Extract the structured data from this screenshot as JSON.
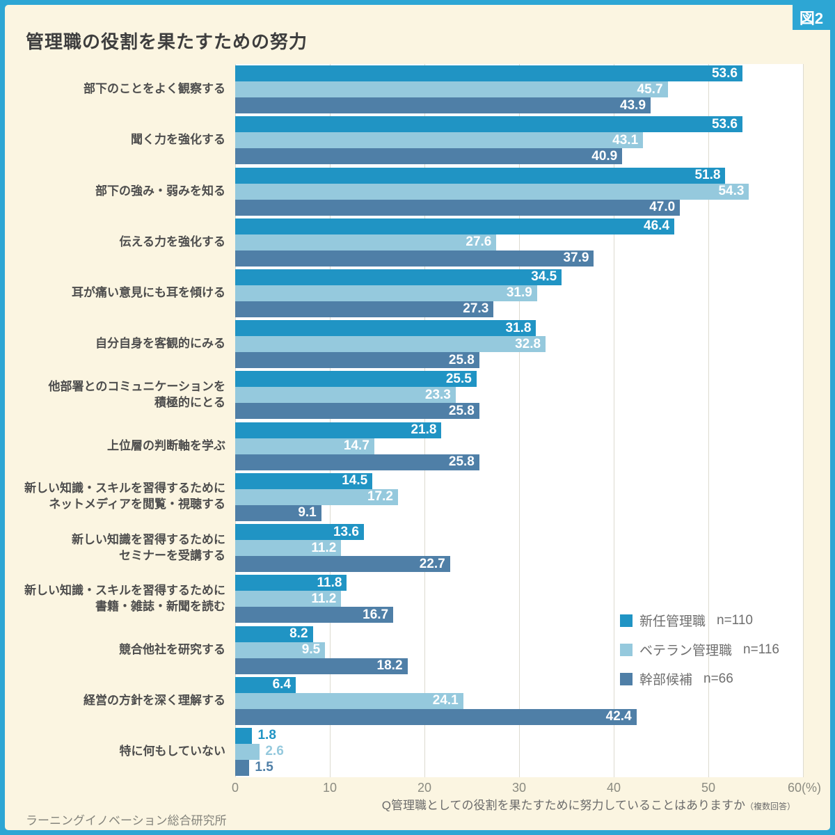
{
  "figure_tag": "図2",
  "title": "管理職の役割を果たすための努力",
  "colors": {
    "frame": "#2da6d4",
    "background": "#fbf5e1",
    "plot_background": "#ffffff",
    "gridline": "#dcdad0",
    "series": [
      "#2094c4",
      "#95c9dd",
      "#4f7fa7"
    ]
  },
  "chart_data": {
    "type": "bar",
    "orientation": "horizontal",
    "title": "管理職の役割を果たすための努力",
    "categories": [
      "部下のことをよく観察する",
      "聞く力を強化する",
      "部下の強み・弱みを知る",
      "伝える力を強化する",
      "耳が痛い意見にも耳を傾ける",
      "自分自身を客観的にみる",
      "他部署とのコミュニケーションを\n積極的にとる",
      "上位層の判断軸を学ぶ",
      "新しい知識・スキルを習得するために\nネットメディアを閲覧・視聴する",
      "新しい知識を習得するために\nセミナーを受講する",
      "新しい知識・スキルを習得するために\n書籍・雑誌・新聞を読む",
      "競合他社を研究する",
      "経営の方針を深く理解する",
      "特に何もしていない"
    ],
    "series": [
      {
        "name": "新任管理職",
        "n": "n=110",
        "color": "#2094c4",
        "values": [
          53.6,
          53.6,
          51.8,
          46.4,
          34.5,
          31.8,
          25.5,
          21.8,
          14.5,
          13.6,
          11.8,
          8.2,
          6.4,
          1.8
        ],
        "labels": [
          "53.6",
          "53.6",
          "51.8",
          "46.4",
          "34.5",
          "31.8",
          "25.5",
          "21.8",
          "14.5",
          "13.6",
          "11.8",
          "8.2",
          "6.4",
          "1.8"
        ]
      },
      {
        "name": "ベテラン管理職",
        "n": "n=116",
        "color": "#95c9dd",
        "values": [
          45.7,
          43.1,
          54.3,
          27.6,
          31.9,
          32.8,
          23.3,
          14.7,
          17.2,
          11.2,
          11.2,
          9.5,
          24.1,
          2.6
        ],
        "labels": [
          "45.7",
          "43.1",
          "54.3",
          "27.6",
          "31.9",
          "32.8",
          "23.3",
          "14.7",
          "17.2",
          "11.2",
          "11.2",
          "9.5",
          "24.1",
          "2.6"
        ]
      },
      {
        "name": "幹部候補",
        "n": "n=66",
        "color": "#4f7fa7",
        "values": [
          43.9,
          40.9,
          47.0,
          37.9,
          27.3,
          25.8,
          25.8,
          25.8,
          9.1,
          22.7,
          16.7,
          18.2,
          42.4,
          1.5
        ],
        "labels": [
          "43.9",
          "40.9",
          "47.0",
          "37.9",
          "27.3",
          "25.8",
          "25.8",
          "25.8",
          "9.1",
          "22.7",
          "16.7",
          "18.2",
          "42.4",
          "1.5"
        ]
      }
    ],
    "xlim": [
      0,
      60
    ],
    "x_ticks": [
      0,
      10,
      20,
      30,
      40,
      50,
      60
    ],
    "x_axis_suffix": "(%)",
    "grid": true,
    "legend_position": "inside-right",
    "value_label_inside_threshold": 4.5
  },
  "footnote": {
    "main": "Q管理職としての役割を果たすために努力していることはありますか",
    "small": "（複数回答）"
  },
  "source": "ラーニングイノベーション総合研究所"
}
